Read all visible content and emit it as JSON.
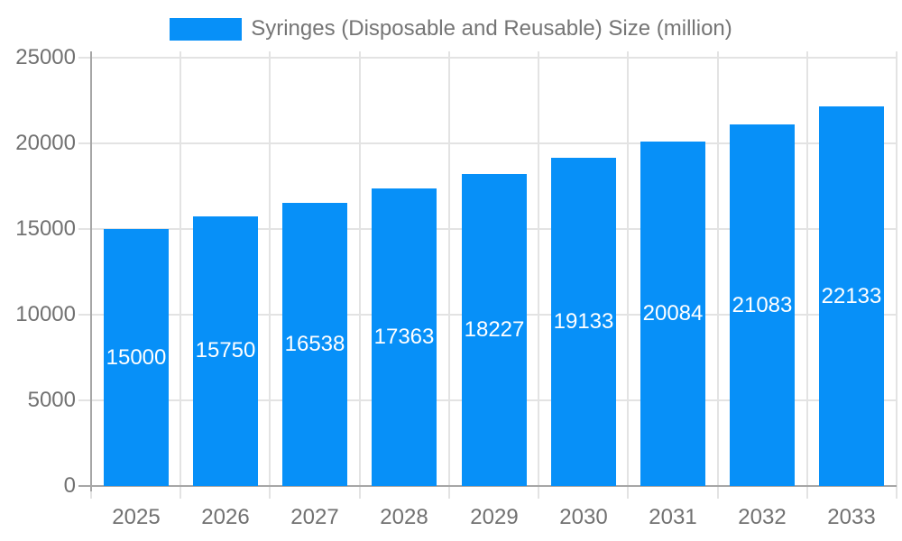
{
  "legend": {
    "label": "Syringes (Disposable and Reusable) Size (million)"
  },
  "colors": {
    "bar": "#0790F8",
    "bar_label": "#FFFFFF",
    "axis_text": "#717171",
    "legend_text": "#757575",
    "gridline": "#E3E3E3",
    "axis_line": "#A6A6A6",
    "background": "#FFFFFF"
  },
  "chart_data": {
    "type": "bar",
    "title": "Syringes (Disposable and Reusable) Size (million)",
    "categories": [
      "2025",
      "2026",
      "2027",
      "2028",
      "2029",
      "2030",
      "2031",
      "2032",
      "2033"
    ],
    "values": [
      15000,
      15750,
      16538,
      17363,
      18227,
      19133,
      20084,
      21083,
      22133
    ],
    "xlabel": "",
    "ylabel": "",
    "ylim": [
      0,
      25000
    ],
    "yticks": [
      0,
      5000,
      10000,
      15000,
      20000,
      25000
    ],
    "grid": true,
    "legend_position": "top",
    "value_labels": "inside-center"
  }
}
